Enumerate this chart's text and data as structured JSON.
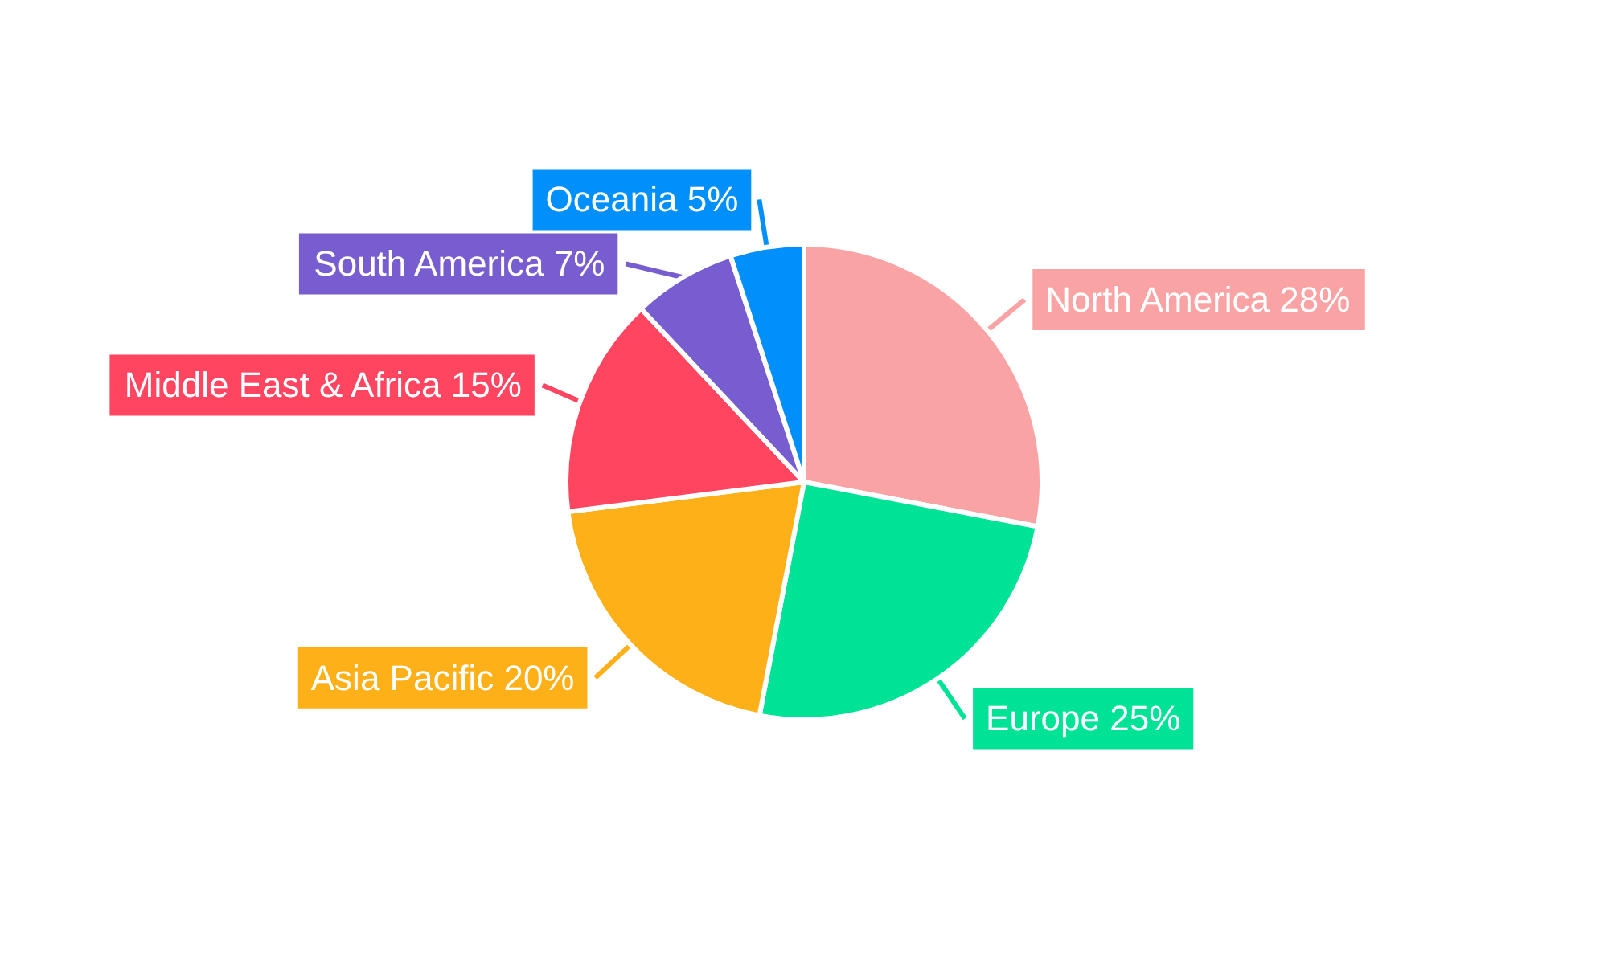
{
  "chart_data": {
    "type": "pie",
    "categories": [
      "North America",
      "Europe",
      "Asia Pacific",
      "Middle East & Africa",
      "South America",
      "Oceania"
    ],
    "values": [
      28,
      25,
      20,
      15,
      7,
      5
    ],
    "value_labels": [
      "28%",
      "25%",
      "20%",
      "15%",
      "7%",
      "5%"
    ],
    "colors": [
      "#f9a3a4",
      "#00e396",
      "#feb019",
      "#ff4560",
      "#775dd0",
      "#008ffb"
    ],
    "legend": false
  }
}
